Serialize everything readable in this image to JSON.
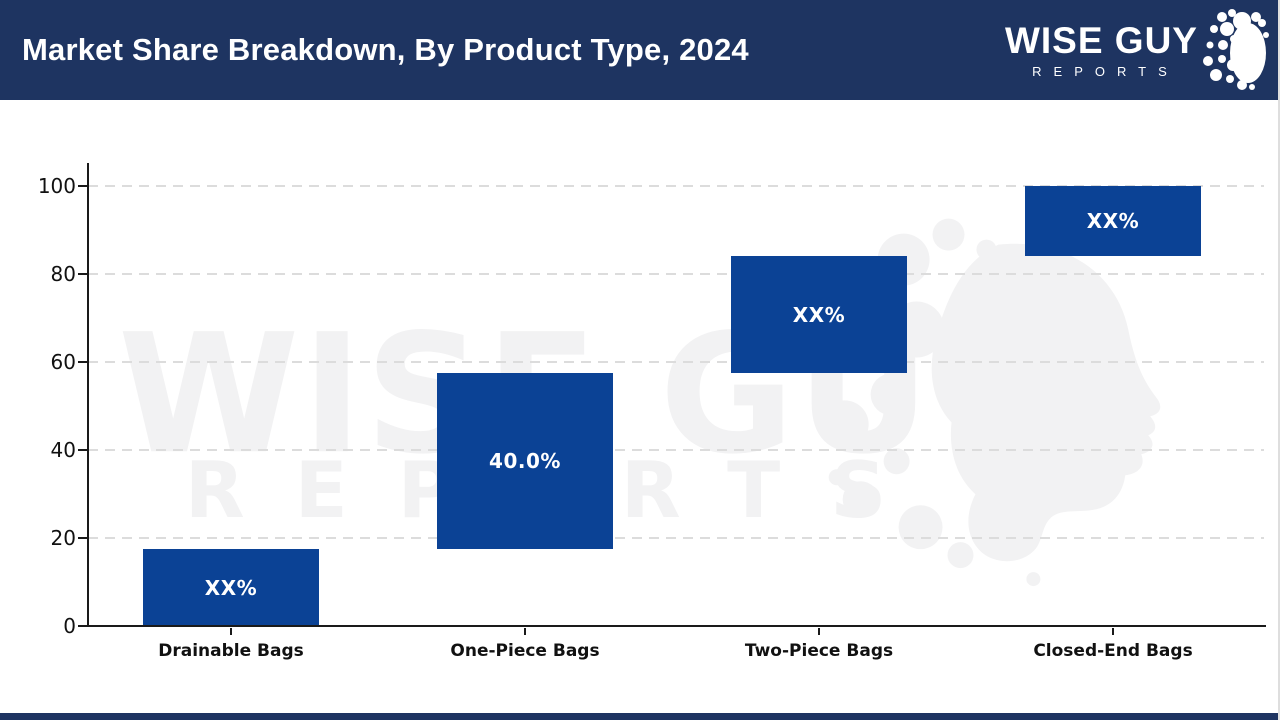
{
  "header": {
    "title": "Market Share Breakdown, By Product Type, 2024",
    "logo": {
      "line1": "WISE GUY",
      "line2": "REPORTS"
    }
  },
  "watermark": {
    "line1": "WISE GUY",
    "line2": "REPORTS"
  },
  "colors": {
    "header_bg": "#1e3461",
    "footer_bg": "#1e3461",
    "bar": "#0b4295",
    "bar_label": "#ffffff",
    "axis": "#1a1a1a",
    "gridline": "#dcdcdc",
    "tick_label": "#111111",
    "watermark": "#f2f2f3",
    "title_text": "#ffffff"
  },
  "chart_data": {
    "type": "bar",
    "subtype": "waterfall",
    "title": "Market Share Breakdown, By Product Type, 2024",
    "categories": [
      "Drainable Bags",
      "One-Piece Bags",
      "Two-Piece Bags",
      "Closed-End Bags"
    ],
    "series": [
      {
        "name": "Market share (%)",
        "segments": [
          {
            "category": "Drainable Bags",
            "from": 0,
            "to": 17.5,
            "label": "XX%"
          },
          {
            "category": "One-Piece Bags",
            "from": 17.5,
            "to": 57.5,
            "label": "40.0%"
          },
          {
            "category": "Two-Piece Bags",
            "from": 57.5,
            "to": 84,
            "label": "XX%"
          },
          {
            "category": "Closed-End Bags",
            "from": 84,
            "to": 100,
            "label": "XX%"
          }
        ]
      }
    ],
    "xlabel": "",
    "ylabel": "",
    "ylim": [
      0,
      100
    ],
    "yticks": [
      0,
      20,
      40,
      60,
      80,
      100
    ],
    "grid": "horizontal-dashed",
    "legend": "none"
  }
}
